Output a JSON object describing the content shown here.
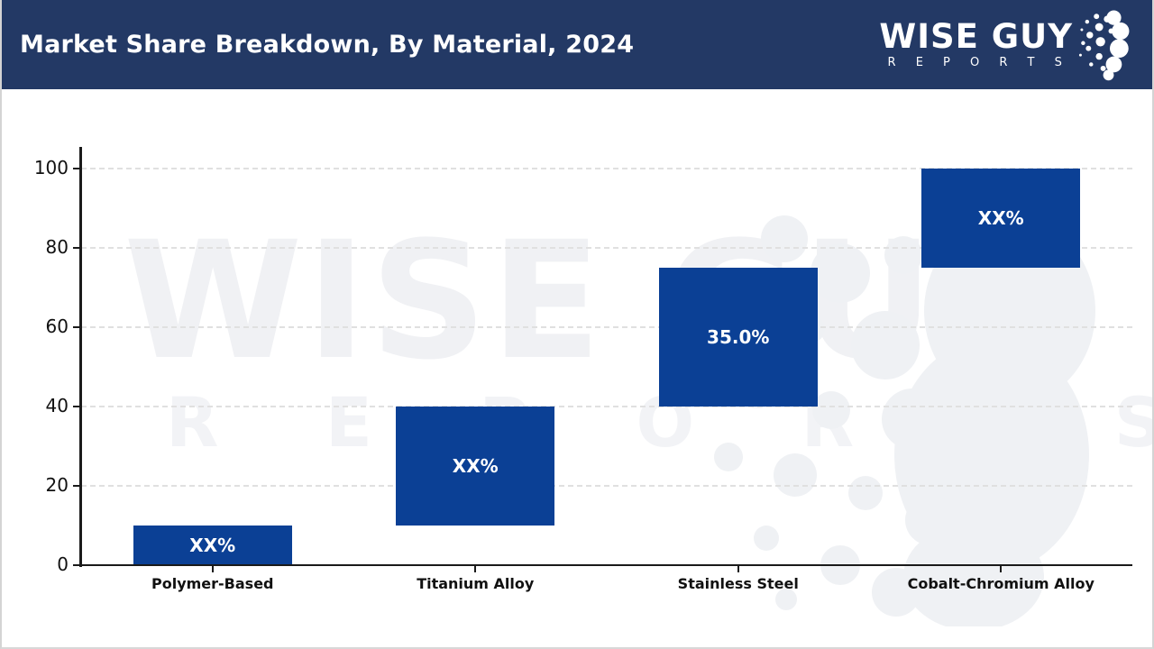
{
  "header": {
    "title": "Market Share Breakdown, By Material, 2024",
    "logo": {
      "name": "WISE GUY",
      "sub": "R E P O R T S"
    }
  },
  "watermark": {
    "text": "WISE GU",
    "sub": "R E P O R T S"
  },
  "chart_data": {
    "type": "bar",
    "subtype": "waterfall",
    "categories": [
      "Polymer-Based",
      "Titanium Alloy",
      "Stainless Steel",
      "Cobalt-Chromium Alloy"
    ],
    "bars": [
      {
        "category": "Polymer-Based",
        "start": 0,
        "end": 10,
        "label": "XX%"
      },
      {
        "category": "Titanium Alloy",
        "start": 10,
        "end": 40,
        "label": "XX%"
      },
      {
        "category": "Stainless Steel",
        "start": 40,
        "end": 75,
        "label": "35.0%"
      },
      {
        "category": "Cobalt-Chromium Alloy",
        "start": 75,
        "end": 100,
        "label": "XX%"
      }
    ],
    "yticks": [
      0,
      20,
      40,
      60,
      80,
      100
    ],
    "ylim": [
      0,
      100
    ],
    "xlabel": "",
    "ylabel": "",
    "legend": "none",
    "grid": "horizontal-dashed",
    "bar_color": "#0b4095",
    "grid_color": "#e0e0e0",
    "axis_color": "#1a1a1a",
    "header_bg": "#233965"
  }
}
